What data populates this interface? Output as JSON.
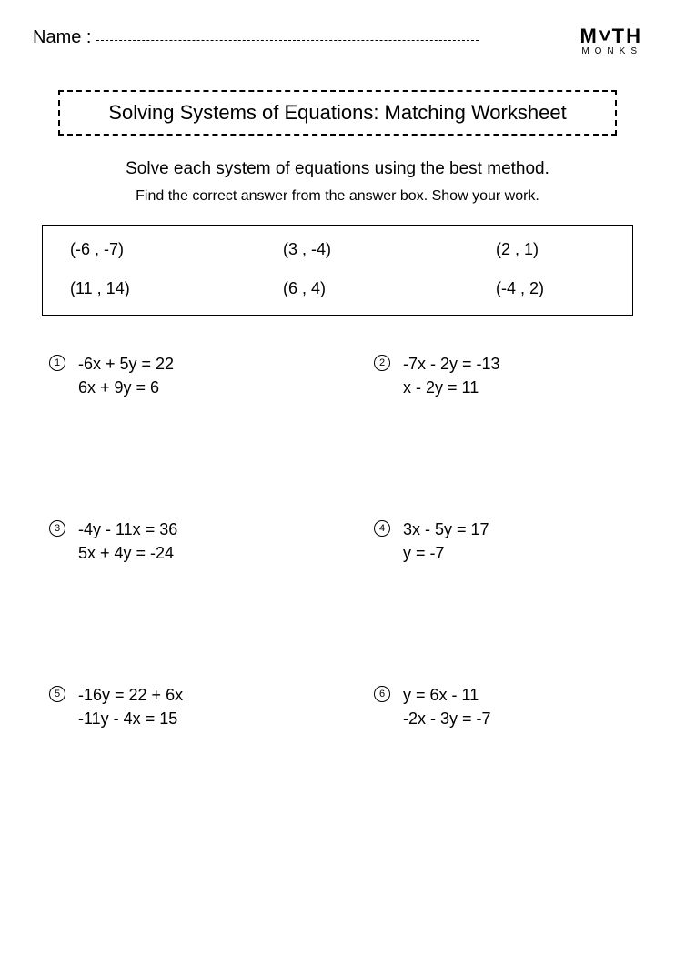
{
  "header": {
    "name_label": "Name :",
    "logo_top": "M∀TH",
    "logo_bottom": "MONKS"
  },
  "title": "Solving Systems of Equations: Matching Worksheet",
  "instruction1": "Solve each system of equations using the best method.",
  "instruction2": "Find the correct answer from the answer box. Show your work.",
  "answers": {
    "row1": [
      "(-6 , -7)",
      "(3 , -4)",
      "(2 , 1)"
    ],
    "row2": [
      "(11 , 14)",
      "(6 , 4)",
      "(-4 , 2)"
    ]
  },
  "problems": [
    {
      "num": "1",
      "eq1": "-6x + 5y = 22",
      "eq2": "6x + 9y = 6"
    },
    {
      "num": "2",
      "eq1": "-7x - 2y = -13",
      "eq2": "x - 2y = 11"
    },
    {
      "num": "3",
      "eq1": "-4y - 11x = 36",
      "eq2": "5x + 4y = -24"
    },
    {
      "num": "4",
      "eq1": "3x - 5y = 17",
      "eq2": "y = -7"
    },
    {
      "num": "5",
      "eq1": "-16y = 22 + 6x",
      "eq2": "-11y - 4x = 15"
    },
    {
      "num": "6",
      "eq1": "y = 6x - 11",
      "eq2": "-2x - 3y = -7"
    }
  ],
  "style": {
    "background_color": "#ffffff",
    "text_color": "#000000",
    "title_fontsize": 22,
    "body_fontsize": 18,
    "instr1_fontsize": 19,
    "instr2_fontsize": 16,
    "circled_number_size": 18
  }
}
